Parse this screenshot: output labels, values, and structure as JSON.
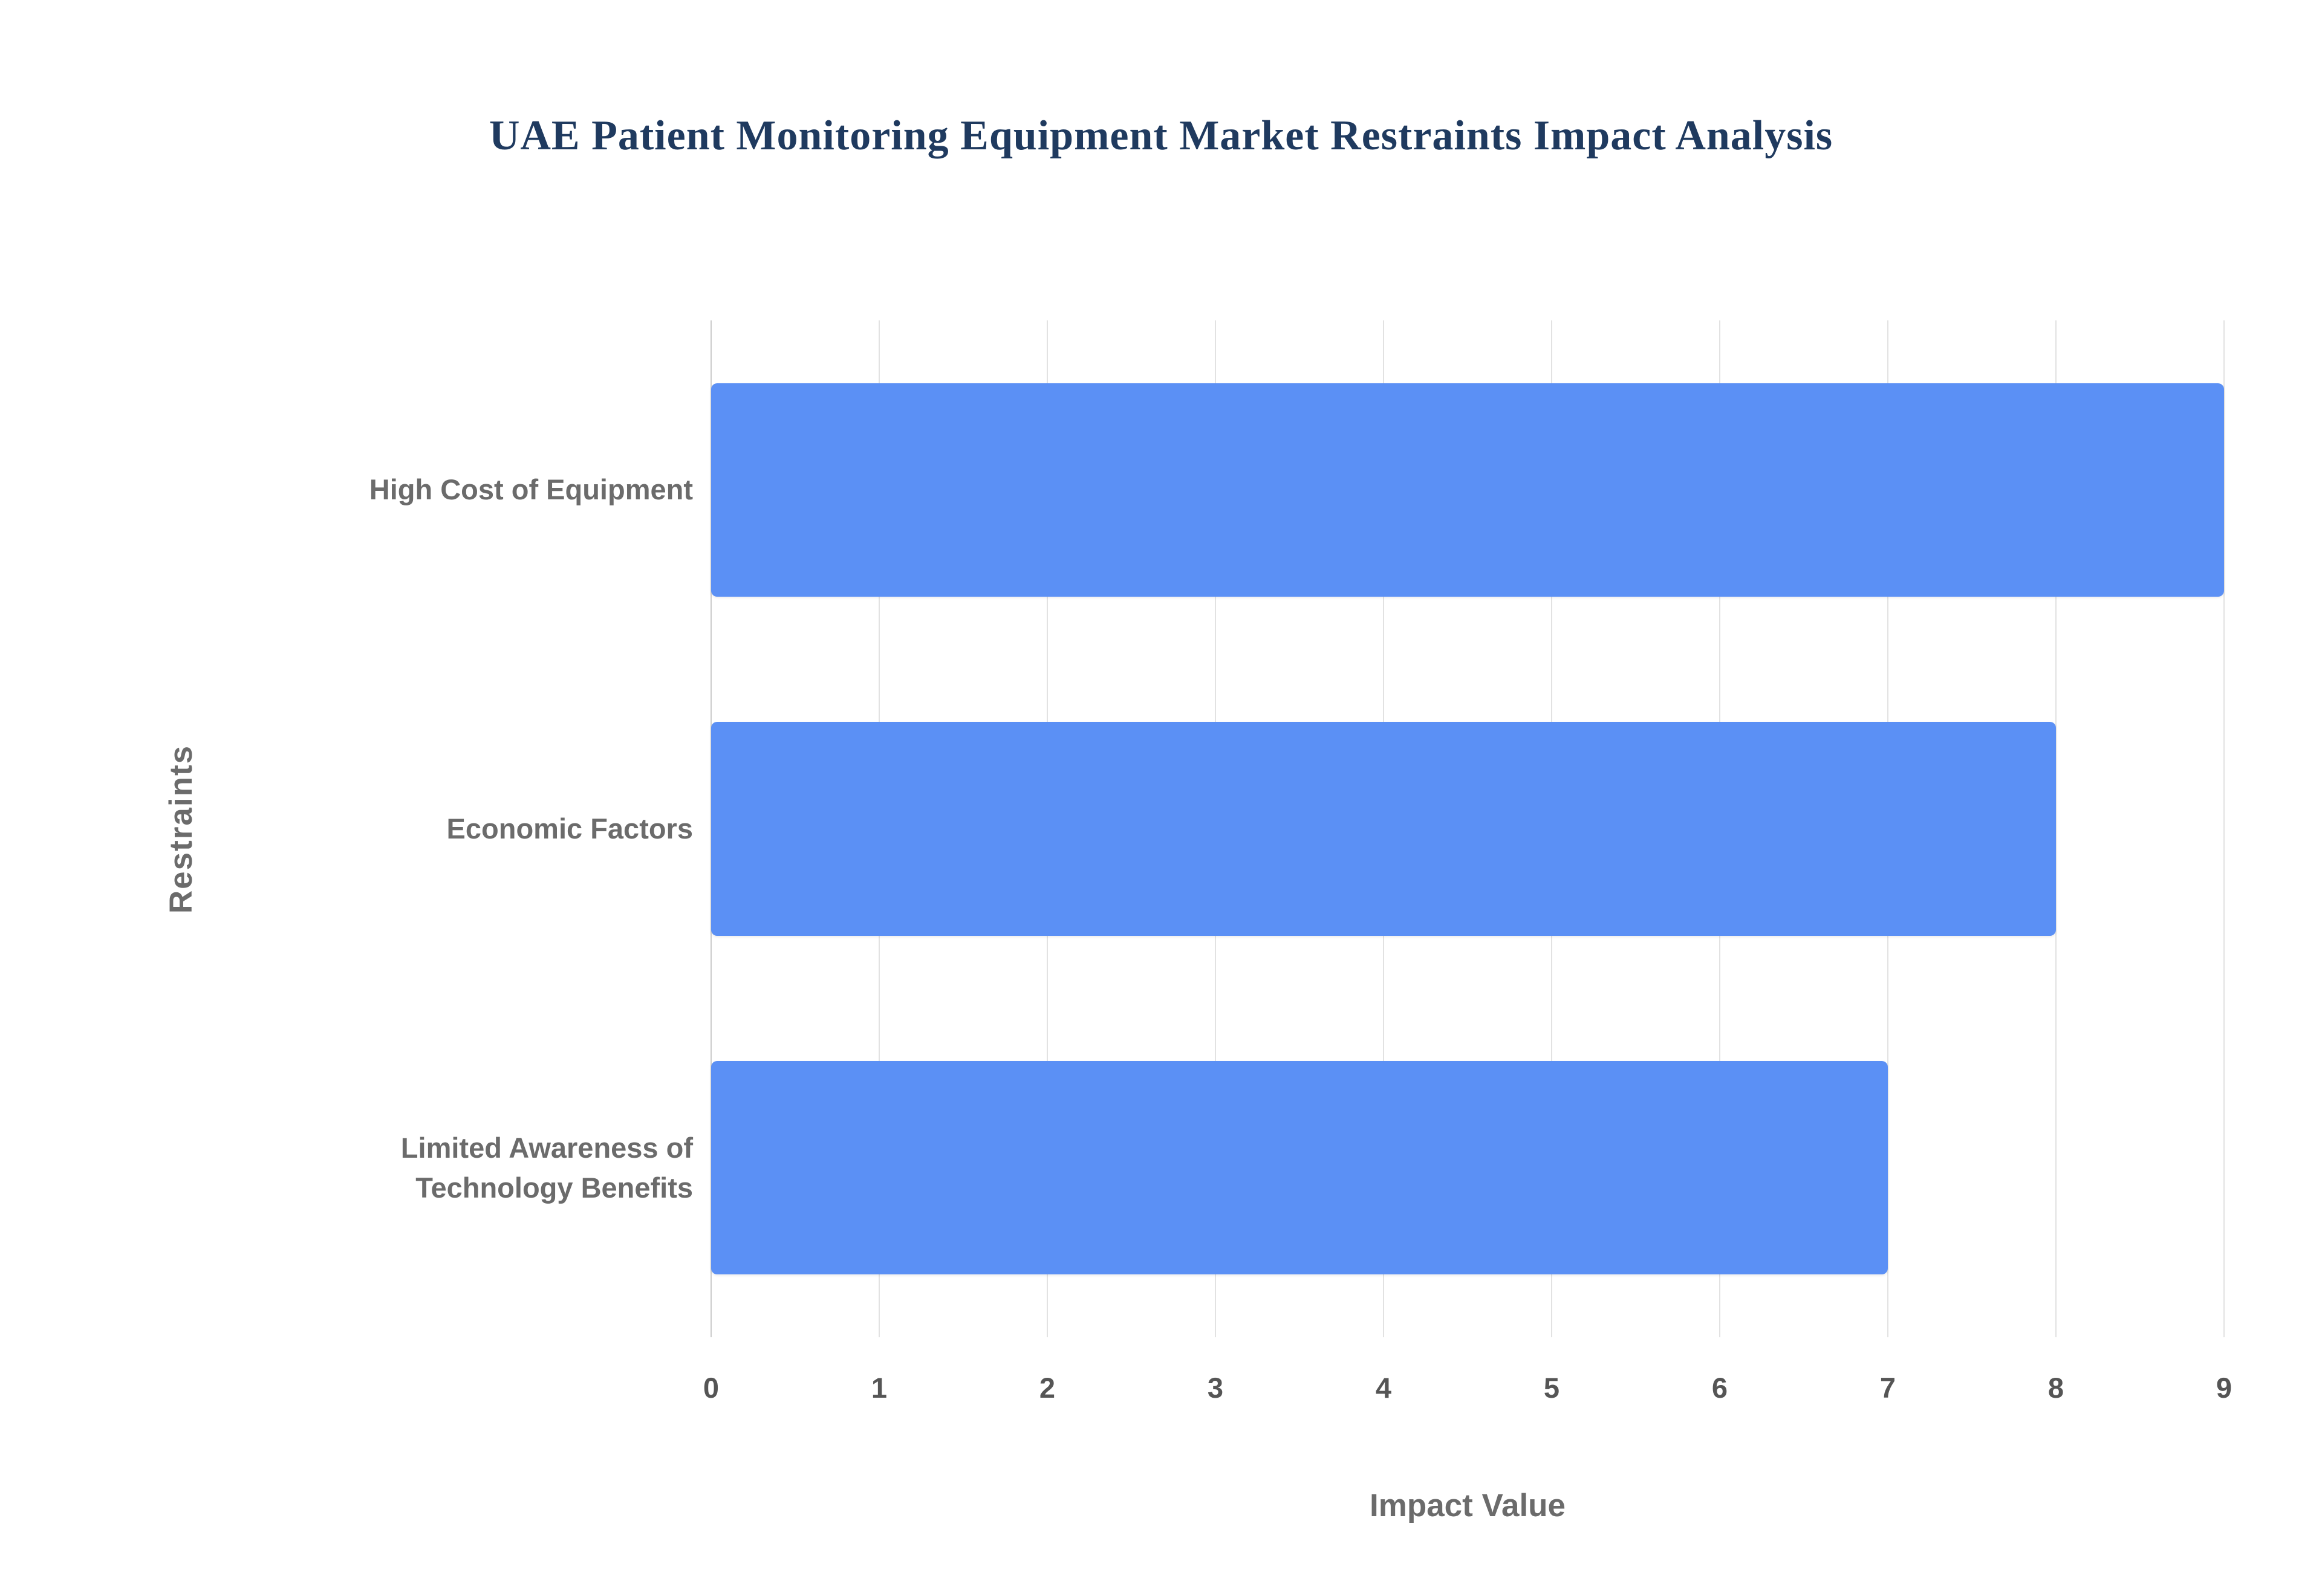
{
  "chart_data": {
    "type": "bar",
    "orientation": "horizontal",
    "title": "UAE Patient Monitoring Equipment Market Restraints Impact Analysis",
    "categories": [
      "High Cost of Equipment",
      "Economic Factors",
      "Limited Awareness of Technology Benefits"
    ],
    "values": [
      9,
      8,
      7
    ],
    "xlabel": "Impact Value",
    "ylabel": "Restraints",
    "xlim": [
      0,
      9
    ],
    "xticks": [
      0,
      1,
      2,
      3,
      4,
      5,
      6,
      7,
      8,
      9
    ],
    "bar_color": "#5b90f5",
    "grid": true,
    "legend": "none",
    "background_color": "#ffffff",
    "title_color": "#1f3a5f",
    "axis_label_color": "#6b6b6b",
    "tick_label_color": "#555555",
    "gridline_color": "#e2e2e2"
  }
}
